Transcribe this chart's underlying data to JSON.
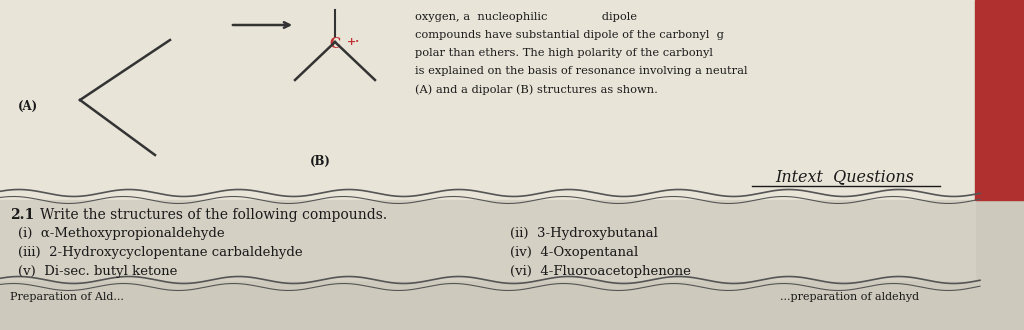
{
  "bg_color": "#cdc9bc",
  "red_bar_color": "#b03030",
  "line_color": "#555555",
  "text_color": "#1a1a1a",
  "red_text_color": "#c03030",
  "intext_questions_text": "Intext  Questions",
  "question_number": "2.1",
  "question_text": "Write the structures of the following compounds.",
  "items_left": [
    "(i)  α-Methoxypropionaldehyde",
    "(iii)  2-Hydroxycyclopentane carbaldehyde",
    "(v)  Di-sec. butyl ketone"
  ],
  "items_right": [
    "(ii)  3-Hydroxybutanal",
    "(iv)  4-Oxopentanal",
    "(vi)  4-Fluoroacetophenone"
  ],
  "top_right_lines": [
    "oxygen, a  nucleophilic               dipole",
    "compounds have substantial dipole of the carbonyl  g",
    "polar than ethers. The high polarity of the carbonyl",
    "is explained on the basis of resonance involving a neutral",
    "(A) and a dipolar (B) structures as shown."
  ],
  "label_A": "(A)",
  "label_B": "(B)",
  "c_label": "C",
  "c_plus": "+·",
  "bottom_left": "Preparation of Ald...",
  "bottom_right": "...preparation of aldehyd"
}
